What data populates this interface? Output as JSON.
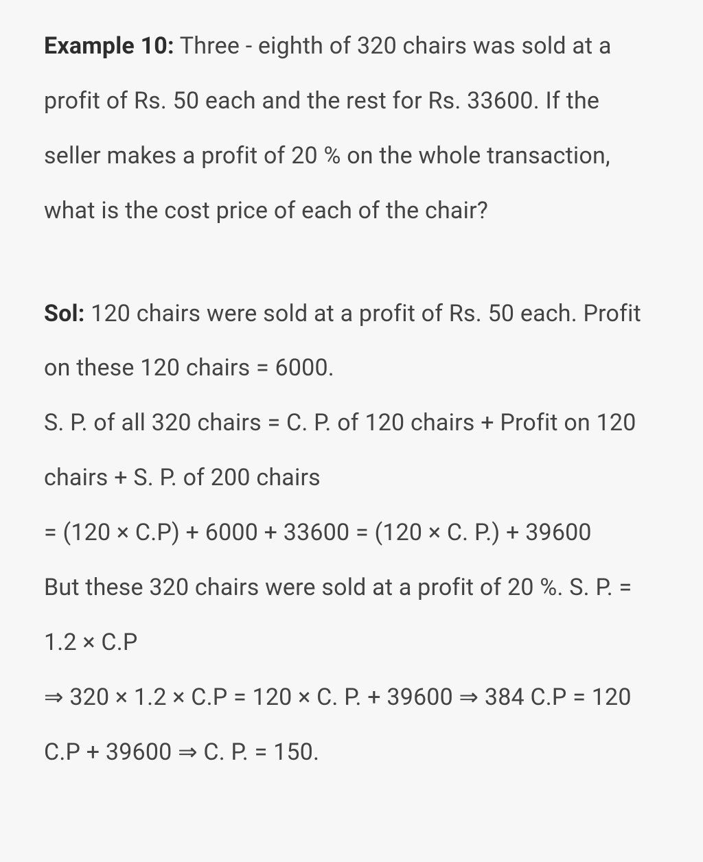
{
  "problem": {
    "label": "Example 10:",
    "text": " Three - eighth of 320 chairs was sold at a profit of Rs. 50 each and the rest for Rs. 33600. If the seller makes a profit of 20 % on the whole transaction, what is the cost price of each of the chair?"
  },
  "solution": {
    "label": "Sol:",
    "lines": [
      " 120 chairs were sold at a profit of Rs. 50 each. Profit on these 120 chairs = 6000.",
      "S. P. of all 320 chairs = C. P. of 120 chairs + Profit on 120 chairs + S. P. of 200 chairs",
      "= (120 × C.P) + 6000 + 33600 = (120 × C. P.) + 39600",
      "But these 320 chairs were sold at a profit of 20 %. S. P. = 1.2 × C.P",
      "⇒ 320 × 1.2 × C.P = 120 × C. P. + 39600 ⇒ 384 C.P = 120 C.P + 39600 ⇒ C. P. = 150."
    ]
  },
  "colors": {
    "background": "#f7f7f7",
    "text": "#434343",
    "bold_text": "#2d2d2d"
  },
  "typography": {
    "font_size_pt": 26,
    "line_height": 2.35,
    "font_family": "sans-serif",
    "label_weight": 700
  }
}
